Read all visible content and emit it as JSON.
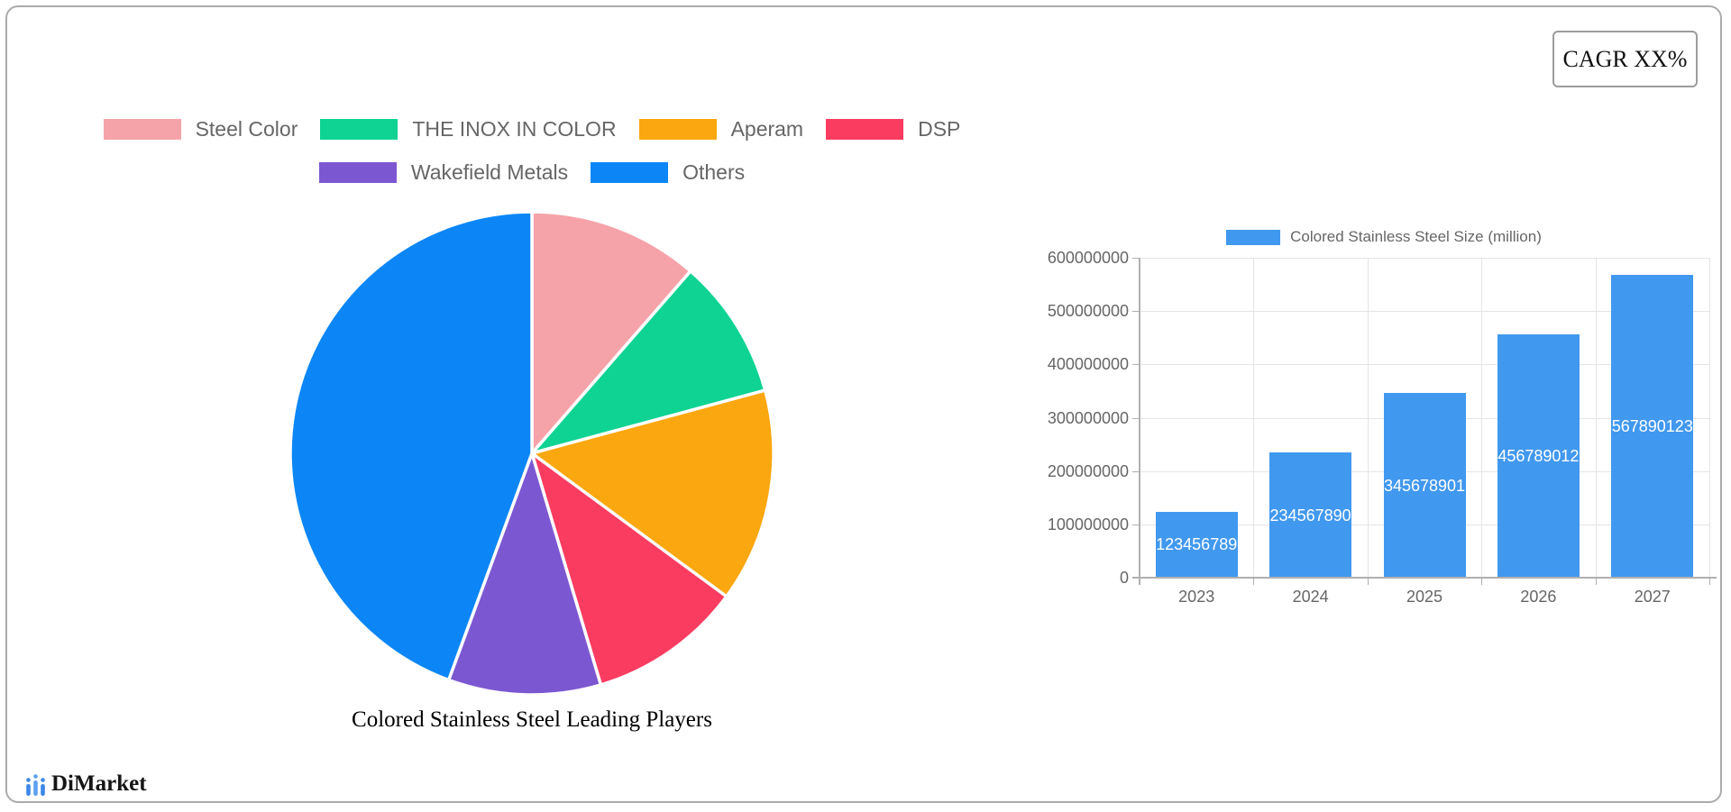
{
  "annotations": {
    "cagr_label": "CAGR XX%"
  },
  "branding": {
    "logo_text": "DiMarket",
    "logo_icon": "bar-chart-icon",
    "logo_color": "#3c86e9"
  },
  "colors": {
    "legend_text": "#666666",
    "axis_text": "#666666",
    "gridline": "#e5e5e5",
    "axis_line": "#b0b0b0",
    "frame_border": "#ababab"
  },
  "chart_data": [
    {
      "type": "pie",
      "title": "Colored Stainless Steel Leading Players",
      "labels": [
        "Steel Color",
        "THE INOX IN COLOR",
        "Aperam",
        "DSP",
        "Wakefield Metals",
        "Others"
      ],
      "values": [
        11.4,
        9.4,
        14.3,
        10.3,
        10.2,
        44.4
      ],
      "value_unit": "% share (estimated from slice angles)",
      "colors": [
        "#F5A3A9",
        "#0FD392",
        "#FBA70F",
        "#FA3C61",
        "#7C57D2",
        "#0C86F6"
      ],
      "legend_position": "top",
      "legend_rows": [
        [
          0,
          1,
          2,
          3
        ],
        [
          4,
          5
        ]
      ],
      "start_angle_deg": 0,
      "direction": "clockwise",
      "slice_border_color": "#ffffff"
    },
    {
      "type": "bar",
      "legend_label": "Colored Stainless Steel Size (million)",
      "categories": [
        "2023",
        "2024",
        "2025",
        "2026",
        "2027"
      ],
      "values": [
        123456789,
        234567890,
        345678901,
        456789012,
        567890123
      ],
      "bar_color": "#4198EF",
      "data_label_color": "#ffffff",
      "ylim": [
        0,
        600000000
      ],
      "yticks": [
        0,
        100000000,
        200000000,
        300000000,
        400000000,
        500000000,
        600000000
      ],
      "grid": true,
      "legend_position": "top"
    }
  ]
}
